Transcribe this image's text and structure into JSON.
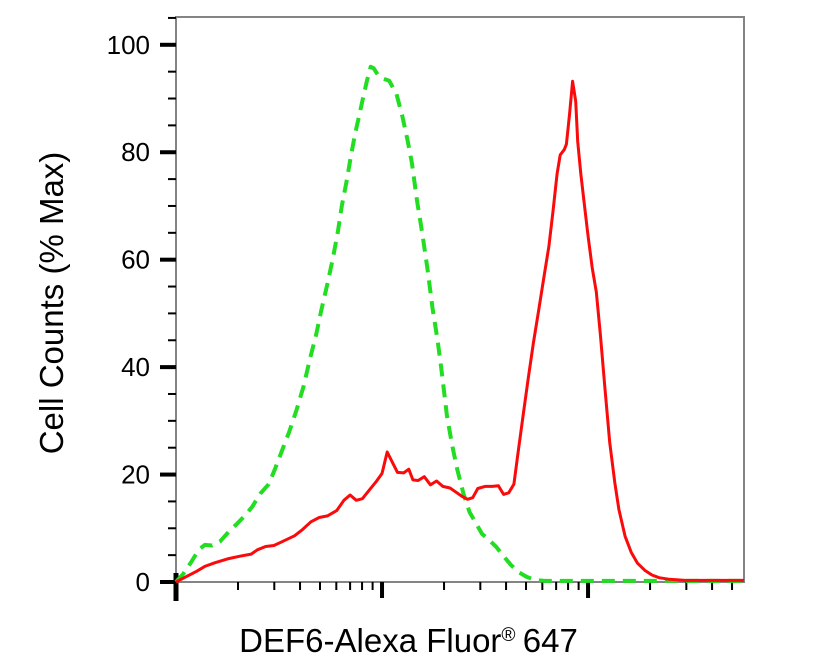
{
  "figure": {
    "kind": "flow-cytometry-overlay-histogram",
    "background_color": "#ffffff"
  },
  "chart_data": {
    "type": "line",
    "title": "",
    "xlabel": "DEF6-Alexa Fluor® 647",
    "xlabel_parts": {
      "main": "DEF6-Alexa Fluor",
      "registered_mark": "®",
      "suffix": "647"
    },
    "ylabel": "Cell Counts (% Max)",
    "x_axis": {
      "scale": "log10",
      "min_log10": 0,
      "max_log10": 2.757,
      "major_tick_decades": [
        0,
        1,
        2
      ],
      "minor_ticks_per_decade": [
        2,
        3,
        4,
        5,
        6,
        7,
        8,
        9
      ],
      "numeric_labels_shown": false
    },
    "y_axis": {
      "min": 0,
      "max": 105,
      "major_ticks": [
        0,
        20,
        40,
        60,
        80,
        100
      ],
      "tick_labels": [
        "0",
        "20",
        "40",
        "60",
        "80",
        "100"
      ],
      "minor_tick_step": 5
    },
    "grid": false,
    "legend": false,
    "frame_color": "#848484",
    "tick_color": "#000000",
    "series": [
      {
        "id": "green-dashed-curve",
        "line_style": "dashed",
        "color": "#22dd22",
        "stroke_width": 4,
        "dash_pattern": [
          13,
          8
        ],
        "points_log10x_pctmax": [
          [
            0.0,
            0
          ],
          [
            0.035,
            1.5
          ],
          [
            0.075,
            3.8
          ],
          [
            0.11,
            6.0
          ],
          [
            0.14,
            6.9
          ],
          [
            0.175,
            6.8
          ],
          [
            0.215,
            7.6
          ],
          [
            0.255,
            9.3
          ],
          [
            0.295,
            10.8
          ],
          [
            0.33,
            12.2
          ],
          [
            0.37,
            14.0
          ],
          [
            0.41,
            16.5
          ],
          [
            0.45,
            18.2
          ],
          [
            0.48,
            21.0
          ],
          [
            0.515,
            24.5
          ],
          [
            0.55,
            28.0
          ],
          [
            0.585,
            32.0
          ],
          [
            0.62,
            36.5
          ],
          [
            0.65,
            41.5
          ],
          [
            0.68,
            46.0
          ],
          [
            0.705,
            50.5
          ],
          [
            0.735,
            55.5
          ],
          [
            0.76,
            60.0
          ],
          [
            0.785,
            65.0
          ],
          [
            0.805,
            70.0
          ],
          [
            0.83,
            75.0
          ],
          [
            0.85,
            79.5
          ],
          [
            0.87,
            83.5
          ],
          [
            0.89,
            87.0
          ],
          [
            0.91,
            90.5
          ],
          [
            0.928,
            93.5
          ],
          [
            0.945,
            95.9
          ],
          [
            0.96,
            95.6
          ],
          [
            0.98,
            94.4
          ],
          [
            1.0,
            93.8
          ],
          [
            1.035,
            93.3
          ],
          [
            1.07,
            90.9
          ],
          [
            1.1,
            86.5
          ],
          [
            1.125,
            82.0
          ],
          [
            1.145,
            78.0
          ],
          [
            1.17,
            71.0
          ],
          [
            1.195,
            65.0
          ],
          [
            1.22,
            58.5
          ],
          [
            1.245,
            51.0
          ],
          [
            1.27,
            45.0
          ],
          [
            1.29,
            39.0
          ],
          [
            1.315,
            31.0
          ],
          [
            1.34,
            25.5
          ],
          [
            1.365,
            21.0
          ],
          [
            1.395,
            16.5
          ],
          [
            1.425,
            13.0
          ],
          [
            1.455,
            11.0
          ],
          [
            1.485,
            9.0
          ],
          [
            1.52,
            7.8
          ],
          [
            1.555,
            6.5
          ],
          [
            1.59,
            4.8
          ],
          [
            1.625,
            3.2
          ],
          [
            1.66,
            1.9
          ],
          [
            1.7,
            1.0
          ],
          [
            1.74,
            0.4
          ],
          [
            1.79,
            0.2
          ],
          [
            2.757,
            0.2
          ]
        ]
      },
      {
        "id": "red-solid-curve",
        "line_style": "solid",
        "color": "#fa0a0a",
        "stroke_width": 3,
        "dash_pattern": null,
        "points_log10x_pctmax": [
          [
            0.0,
            0
          ],
          [
            0.04,
            0.8
          ],
          [
            0.1,
            2.0
          ],
          [
            0.14,
            2.9
          ],
          [
            0.19,
            3.6
          ],
          [
            0.25,
            4.3
          ],
          [
            0.31,
            4.8
          ],
          [
            0.365,
            5.2
          ],
          [
            0.395,
            6.0
          ],
          [
            0.435,
            6.6
          ],
          [
            0.475,
            6.8
          ],
          [
            0.515,
            7.5
          ],
          [
            0.575,
            8.6
          ],
          [
            0.615,
            9.8
          ],
          [
            0.655,
            11.2
          ],
          [
            0.695,
            12.0
          ],
          [
            0.735,
            12.3
          ],
          [
            0.78,
            13.3
          ],
          [
            0.815,
            15.2
          ],
          [
            0.845,
            16.2
          ],
          [
            0.875,
            15.2
          ],
          [
            0.905,
            15.5
          ],
          [
            0.94,
            17.2
          ],
          [
            0.97,
            18.6
          ],
          [
            1.0,
            20.2
          ],
          [
            1.025,
            24.2
          ],
          [
            1.05,
            22.3
          ],
          [
            1.075,
            20.4
          ],
          [
            1.105,
            20.3
          ],
          [
            1.13,
            21.0
          ],
          [
            1.15,
            19.0
          ],
          [
            1.175,
            18.9
          ],
          [
            1.205,
            19.6
          ],
          [
            1.235,
            18.1
          ],
          [
            1.265,
            18.8
          ],
          [
            1.295,
            17.8
          ],
          [
            1.33,
            17.5
          ],
          [
            1.36,
            16.7
          ],
          [
            1.39,
            15.9
          ],
          [
            1.415,
            15.4
          ],
          [
            1.44,
            15.7
          ],
          [
            1.465,
            17.4
          ],
          [
            1.5,
            17.8
          ],
          [
            1.535,
            17.8
          ],
          [
            1.565,
            17.9
          ],
          [
            1.59,
            16.3
          ],
          [
            1.615,
            16.6
          ],
          [
            1.64,
            18.2
          ],
          [
            1.66,
            24.0
          ],
          [
            1.685,
            31.0
          ],
          [
            1.71,
            38.0
          ],
          [
            1.735,
            44.5
          ],
          [
            1.76,
            50.5
          ],
          [
            1.785,
            56.5
          ],
          [
            1.81,
            62.5
          ],
          [
            1.83,
            69.0
          ],
          [
            1.85,
            76.0
          ],
          [
            1.865,
            79.5
          ],
          [
            1.885,
            80.5
          ],
          [
            1.895,
            81.5
          ],
          [
            1.91,
            87.0
          ],
          [
            1.925,
            93.2
          ],
          [
            1.94,
            89.5
          ],
          [
            1.95,
            82.0
          ],
          [
            1.965,
            76.0
          ],
          [
            1.98,
            71.0
          ],
          [
            2.0,
            64.5
          ],
          [
            2.02,
            58.5
          ],
          [
            2.04,
            54.0
          ],
          [
            2.06,
            46.0
          ],
          [
            2.08,
            37.0
          ],
          [
            2.105,
            26.0
          ],
          [
            2.13,
            18.5
          ],
          [
            2.15,
            13.5
          ],
          [
            2.18,
            8.5
          ],
          [
            2.21,
            5.5
          ],
          [
            2.24,
            3.5
          ],
          [
            2.275,
            2.2
          ],
          [
            2.31,
            1.3
          ],
          [
            2.345,
            0.8
          ],
          [
            2.395,
            0.5
          ],
          [
            2.47,
            0.3
          ],
          [
            2.757,
            0.3
          ]
        ]
      }
    ]
  }
}
